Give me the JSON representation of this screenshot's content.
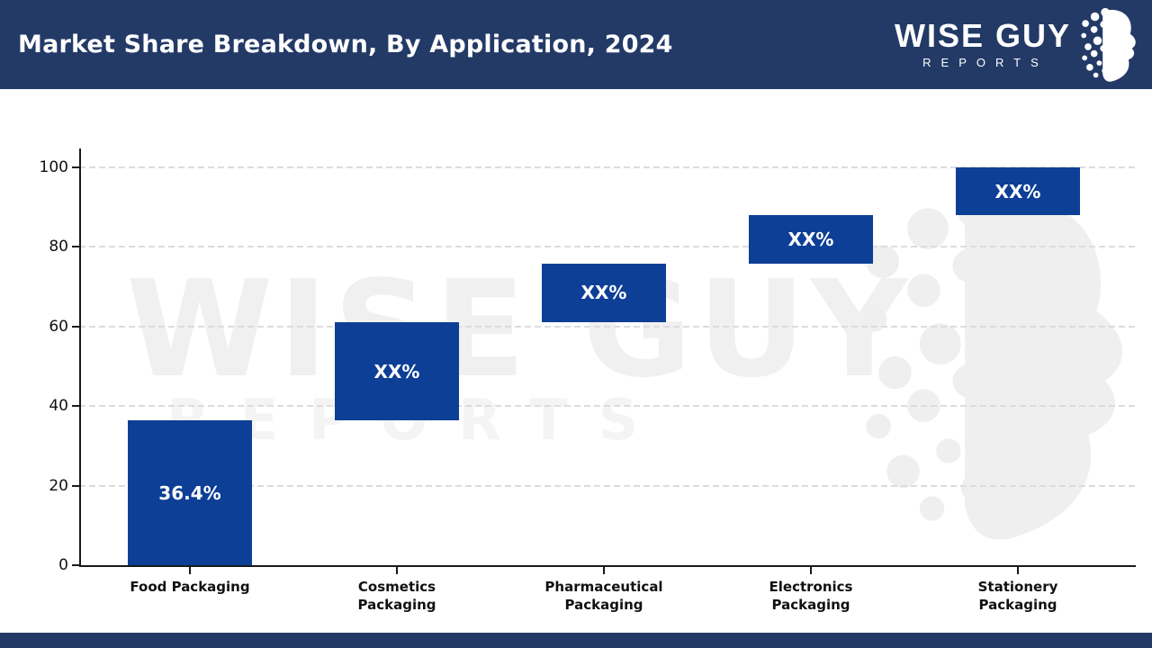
{
  "header": {
    "title": "Market Share Breakdown, By Application, 2024",
    "logo": {
      "line1": "WISE GUY",
      "line2": "REPORTS"
    }
  },
  "watermark": {
    "line1": "WISE GUY",
    "line2": "REPORTS"
  },
  "colors": {
    "header_bg": "#233a67",
    "footer_bg": "#233a67",
    "bar": "#0d3f96",
    "bar_label": "#ffffff",
    "gridline": "#dcdcdc",
    "axis": "#1a1a1a"
  },
  "chart_data": {
    "type": "bar",
    "subtype": "waterfall",
    "title": "Market Share Breakdown, By Application, 2024",
    "xlabel": "",
    "ylabel": "",
    "ylim": [
      0,
      100
    ],
    "yticks": [
      0,
      20,
      40,
      60,
      80,
      100
    ],
    "grid": "horizontal-dashed",
    "legend": "none",
    "categories": [
      "Food Packaging",
      "Cosmetics Packaging",
      "Pharmaceutical Packaging",
      "Electronics Packaging",
      "Stationery Packaging"
    ],
    "segments": [
      {
        "category": "Food Packaging",
        "lines": [
          "Food Packaging"
        ],
        "start": 0,
        "end": 36.4,
        "value": 36.4,
        "label": "36.4%"
      },
      {
        "category": "Cosmetics Packaging",
        "lines": [
          "Cosmetics",
          "Packaging"
        ],
        "start": 36.4,
        "end": 61.0,
        "value": 24.6,
        "label": "XX%"
      },
      {
        "category": "Pharmaceutical Packaging",
        "lines": [
          "Pharmaceutical",
          "Packaging"
        ],
        "start": 61.0,
        "end": 75.9,
        "value": 14.9,
        "label": "XX%"
      },
      {
        "category": "Electronics Packaging",
        "lines": [
          "Electronics",
          "Packaging"
        ],
        "start": 75.9,
        "end": 87.9,
        "value": 12.0,
        "label": "XX%"
      },
      {
        "category": "Stationery Packaging",
        "lines": [
          "Stationery",
          "Packaging"
        ],
        "start": 87.9,
        "end": 100,
        "value": 12.1,
        "label": "XX%"
      }
    ]
  }
}
